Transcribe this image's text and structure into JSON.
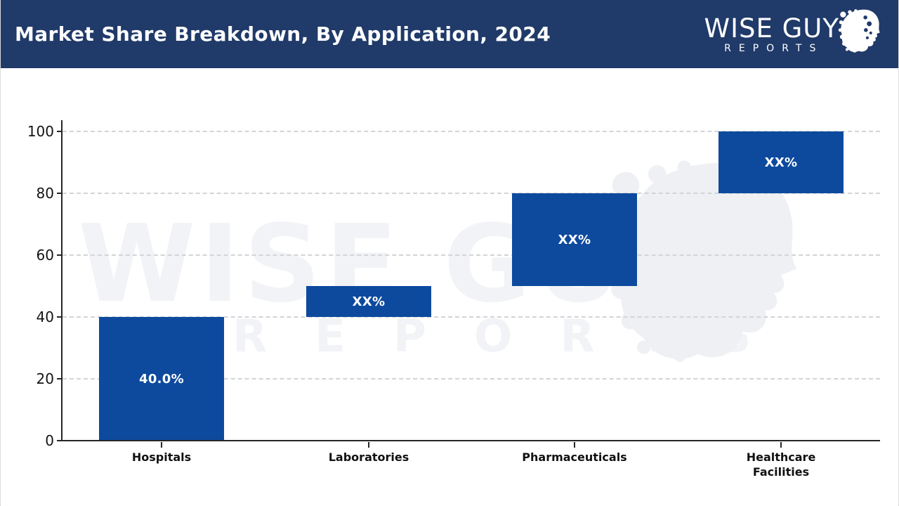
{
  "header": {
    "title": "Market Share Breakdown, By Application, 2024",
    "logo": {
      "line1": "WISE GUY",
      "line2": "REPORTS"
    }
  },
  "watermark": {
    "line1": "WISE GUY",
    "line2": "REPORTS"
  },
  "colors": {
    "header_bg": "#203a69",
    "bar": "#0d4a9e",
    "grid": "#d2d4d8",
    "axis": "#262626",
    "watermark": "#f2f3f6",
    "bar_label_text": "#ffffff",
    "title_text": "#ffffff"
  },
  "chart_data": {
    "type": "bar",
    "subtype": "waterfall",
    "title": "Market Share Breakdown, By Application, 2024",
    "xlabel": "",
    "ylabel": "",
    "ylim": [
      0,
      100
    ],
    "y_ticks": [
      0,
      20,
      40,
      60,
      80,
      100
    ],
    "grid": "horizontal-dashed",
    "legend": "none",
    "categories": [
      "Hospitals",
      "Laboratories",
      "Pharmaceuticals",
      "Healthcare Facilities"
    ],
    "category_display_lines": [
      [
        "Hospitals"
      ],
      [
        "Laboratories"
      ],
      [
        "Pharmaceuticals"
      ],
      [
        "Healthcare",
        "Facilities"
      ]
    ],
    "bars": [
      {
        "category": "Hospitals",
        "base": 0,
        "top": 40,
        "value": 40,
        "label": "40.0%"
      },
      {
        "category": "Laboratories",
        "base": 40,
        "top": 50,
        "value": 10,
        "label": "XX%"
      },
      {
        "category": "Pharmaceuticals",
        "base": 50,
        "top": 80,
        "value": 30,
        "label": "XX%"
      },
      {
        "category": "Healthcare Facilities",
        "base": 80,
        "top": 100,
        "value": 20,
        "label": "XX%"
      }
    ]
  }
}
